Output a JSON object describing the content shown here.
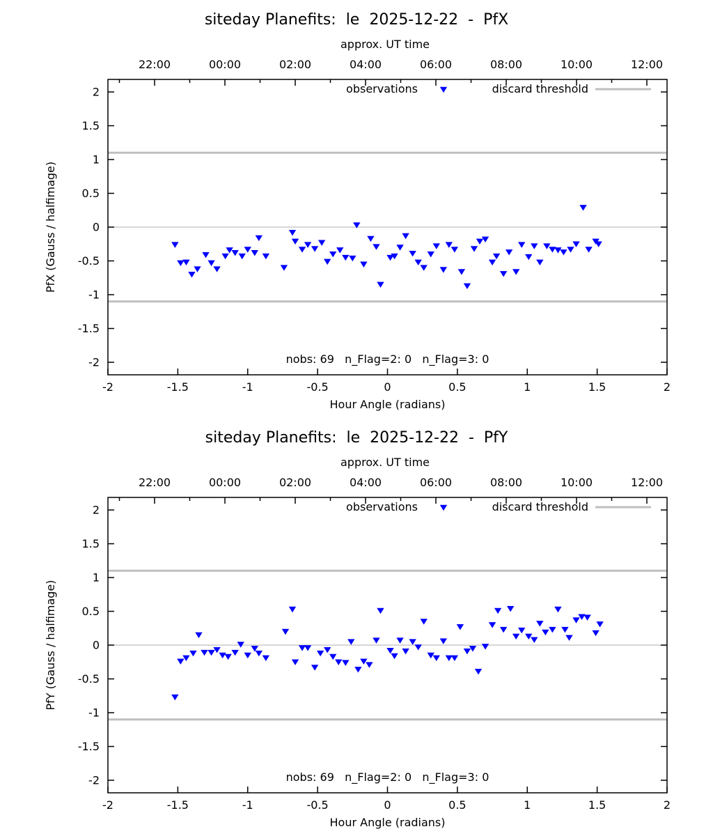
{
  "colors": {
    "background": "#ffffff",
    "marker": "#0000ff",
    "threshold": "#bfbfbf",
    "zero_line": "#c8c8c8",
    "axis": "#000000",
    "text": "#000000"
  },
  "chart_data": [
    {
      "type": "scatter",
      "title": "siteday Planefits:  le  2025-12-22  -  PfX",
      "x2_axis": {
        "label": "approx. UT time",
        "major": [
          {
            "label": "22:00",
            "t": 0
          },
          {
            "label": "00:00",
            "t": 2
          },
          {
            "label": "02:00",
            "t": 4
          },
          {
            "label": "04:00",
            "t": 6
          },
          {
            "label": "06:00",
            "t": 8
          },
          {
            "label": "08:00",
            "t": 10
          },
          {
            "label": "10:00",
            "t": 12
          },
          {
            "label": "12:00",
            "t": 14
          }
        ],
        "minor_t": [
          -1,
          1,
          3,
          5,
          7,
          9,
          11,
          13
        ]
      },
      "x_axis": {
        "label": "Hour Angle (radians)",
        "min": -2,
        "max": 2,
        "ticks": [
          -2,
          -1.5,
          -1,
          -0.5,
          0,
          0.5,
          1,
          1.5,
          2
        ],
        "tick_labels": [
          "-2",
          "-1.5",
          "-1",
          "-0.5",
          "0",
          "0.5",
          "1",
          "1.5",
          "2"
        ]
      },
      "y_axis": {
        "label": "PfX (Gauss / halfimage)",
        "min": -2,
        "max": 2,
        "ticks": [
          2,
          1.5,
          1,
          0.5,
          0,
          -0.5,
          -1,
          -1.5,
          -2
        ],
        "tick_labels": [
          "2",
          "1.5",
          "1",
          "0.5",
          "0",
          "-0.5",
          "-1",
          "-1.5",
          "-2"
        ]
      },
      "legend": [
        {
          "label": "observations",
          "marker": "triangle-down"
        },
        {
          "label": "discard threshold",
          "marker": "line"
        }
      ],
      "discard_threshold": [
        1.1,
        -1.1
      ],
      "zero_line": 0,
      "annotation": "nobs: 69   n_Flag=2: 0   n_Flag=3: 0",
      "series": [
        {
          "name": "observations",
          "points": [
            [
              -1.52,
              -0.26
            ],
            [
              -1.48,
              -0.53
            ],
            [
              -1.44,
              -0.52
            ],
            [
              -1.4,
              -0.7
            ],
            [
              -1.36,
              -0.62
            ],
            [
              -1.3,
              -0.41
            ],
            [
              -1.26,
              -0.53
            ],
            [
              -1.22,
              -0.62
            ],
            [
              -1.16,
              -0.43
            ],
            [
              -1.13,
              -0.34
            ],
            [
              -1.09,
              -0.38
            ],
            [
              -1.04,
              -0.43
            ],
            [
              -1.0,
              -0.33
            ],
            [
              -0.95,
              -0.38
            ],
            [
              -0.92,
              -0.16
            ],
            [
              -0.87,
              -0.43
            ],
            [
              -0.74,
              -0.6
            ],
            [
              -0.68,
              -0.08
            ],
            [
              -0.66,
              -0.21
            ],
            [
              -0.61,
              -0.33
            ],
            [
              -0.57,
              -0.26
            ],
            [
              -0.52,
              -0.32
            ],
            [
              -0.47,
              -0.23
            ],
            [
              -0.43,
              -0.51
            ],
            [
              -0.39,
              -0.4
            ],
            [
              -0.34,
              -0.34
            ],
            [
              -0.3,
              -0.45
            ],
            [
              -0.25,
              -0.46
            ],
            [
              -0.22,
              0.03
            ],
            [
              -0.17,
              -0.55
            ],
            [
              -0.12,
              -0.17
            ],
            [
              -0.08,
              -0.29
            ],
            [
              -0.05,
              -0.85
            ],
            [
              0.02,
              -0.45
            ],
            [
              0.05,
              -0.43
            ],
            [
              0.09,
              -0.3
            ],
            [
              0.13,
              -0.13
            ],
            [
              0.18,
              -0.39
            ],
            [
              0.22,
              -0.52
            ],
            [
              0.26,
              -0.6
            ],
            [
              0.31,
              -0.4
            ],
            [
              0.35,
              -0.28
            ],
            [
              0.4,
              -0.63
            ],
            [
              0.44,
              -0.26
            ],
            [
              0.48,
              -0.33
            ],
            [
              0.53,
              -0.66
            ],
            [
              0.57,
              -0.87
            ],
            [
              0.62,
              -0.32
            ],
            [
              0.66,
              -0.21
            ],
            [
              0.7,
              -0.18
            ],
            [
              0.75,
              -0.52
            ],
            [
              0.78,
              -0.43
            ],
            [
              0.83,
              -0.69
            ],
            [
              0.87,
              -0.37
            ],
            [
              0.92,
              -0.66
            ],
            [
              0.96,
              -0.26
            ],
            [
              1.01,
              -0.44
            ],
            [
              1.05,
              -0.28
            ],
            [
              1.09,
              -0.52
            ],
            [
              1.14,
              -0.28
            ],
            [
              1.18,
              -0.33
            ],
            [
              1.22,
              -0.34
            ],
            [
              1.26,
              -0.37
            ],
            [
              1.31,
              -0.33
            ],
            [
              1.35,
              -0.25
            ],
            [
              1.4,
              0.29
            ],
            [
              1.44,
              -0.33
            ],
            [
              1.49,
              -0.21
            ],
            [
              1.51,
              -0.25
            ]
          ]
        }
      ]
    },
    {
      "type": "scatter",
      "title": "siteday Planefits:  le  2025-12-22  -  PfY",
      "x2_axis": {
        "label": "approx. UT time",
        "major": [
          {
            "label": "22:00",
            "t": 0
          },
          {
            "label": "00:00",
            "t": 2
          },
          {
            "label": "02:00",
            "t": 4
          },
          {
            "label": "04:00",
            "t": 6
          },
          {
            "label": "06:00",
            "t": 8
          },
          {
            "label": "08:00",
            "t": 10
          },
          {
            "label": "10:00",
            "t": 12
          },
          {
            "label": "12:00",
            "t": 14
          }
        ],
        "minor_t": [
          -1,
          1,
          3,
          5,
          7,
          9,
          11,
          13
        ]
      },
      "x_axis": {
        "label": "Hour Angle (radians)",
        "min": -2,
        "max": 2,
        "ticks": [
          -2,
          -1.5,
          -1,
          -0.5,
          0,
          0.5,
          1,
          1.5,
          2
        ],
        "tick_labels": [
          "-2",
          "-1.5",
          "-1",
          "-0.5",
          "0",
          "0.5",
          "1",
          "1.5",
          "2"
        ]
      },
      "y_axis": {
        "label": "PfY (Gauss / halfimage)",
        "min": -2,
        "max": 2,
        "ticks": [
          2,
          1.5,
          1,
          0.5,
          0,
          -0.5,
          -1,
          -1.5,
          -2
        ],
        "tick_labels": [
          "2",
          "1.5",
          "1",
          "0.5",
          "0",
          "-0.5",
          "-1",
          "-1.5",
          "-2"
        ]
      },
      "legend": [
        {
          "label": "observations",
          "marker": "triangle-down"
        },
        {
          "label": "discard threshold",
          "marker": "line"
        }
      ],
      "discard_threshold": [
        1.1,
        -1.1
      ],
      "zero_line": 0,
      "annotation": "nobs: 69   n_Flag=2: 0   n_Flag=3: 0",
      "series": [
        {
          "name": "observations",
          "points": [
            [
              -1.52,
              -0.77
            ],
            [
              -1.48,
              -0.24
            ],
            [
              -1.44,
              -0.19
            ],
            [
              -1.39,
              -0.12
            ],
            [
              -1.35,
              0.15
            ],
            [
              -1.31,
              -0.11
            ],
            [
              -1.26,
              -0.11
            ],
            [
              -1.22,
              -0.07
            ],
            [
              -1.18,
              -0.15
            ],
            [
              -1.14,
              -0.17
            ],
            [
              -1.09,
              -0.11
            ],
            [
              -1.05,
              0.01
            ],
            [
              -1.0,
              -0.15
            ],
            [
              -0.95,
              -0.05
            ],
            [
              -0.92,
              -0.12
            ],
            [
              -0.87,
              -0.19
            ],
            [
              -0.73,
              0.2
            ],
            [
              -0.68,
              0.53
            ],
            [
              -0.66,
              -0.25
            ],
            [
              -0.61,
              -0.04
            ],
            [
              -0.57,
              -0.04
            ],
            [
              -0.52,
              -0.33
            ],
            [
              -0.48,
              -0.12
            ],
            [
              -0.43,
              -0.07
            ],
            [
              -0.39,
              -0.17
            ],
            [
              -0.35,
              -0.25
            ],
            [
              -0.3,
              -0.26
            ],
            [
              -0.26,
              0.05
            ],
            [
              -0.21,
              -0.36
            ],
            [
              -0.17,
              -0.24
            ],
            [
              -0.13,
              -0.29
            ],
            [
              -0.08,
              0.07
            ],
            [
              -0.05,
              0.51
            ],
            [
              0.02,
              -0.08
            ],
            [
              0.05,
              -0.16
            ],
            [
              0.09,
              0.07
            ],
            [
              0.13,
              -0.09
            ],
            [
              0.18,
              0.05
            ],
            [
              0.22,
              -0.03
            ],
            [
              0.26,
              0.35
            ],
            [
              0.31,
              -0.15
            ],
            [
              0.35,
              -0.19
            ],
            [
              0.4,
              0.06
            ],
            [
              0.44,
              -0.19
            ],
            [
              0.48,
              -0.19
            ],
            [
              0.52,
              0.27
            ],
            [
              0.57,
              -0.09
            ],
            [
              0.61,
              -0.05
            ],
            [
              0.65,
              -0.39
            ],
            [
              0.7,
              -0.02
            ],
            [
              0.75,
              0.3
            ],
            [
              0.79,
              0.51
            ],
            [
              0.83,
              0.23
            ],
            [
              0.88,
              0.54
            ],
            [
              0.92,
              0.13
            ],
            [
              0.96,
              0.22
            ],
            [
              1.01,
              0.13
            ],
            [
              1.05,
              0.08
            ],
            [
              1.09,
              0.32
            ],
            [
              1.13,
              0.19
            ],
            [
              1.18,
              0.23
            ],
            [
              1.22,
              0.53
            ],
            [
              1.27,
              0.23
            ],
            [
              1.3,
              0.11
            ],
            [
              1.35,
              0.37
            ],
            [
              1.39,
              0.42
            ],
            [
              1.43,
              0.41
            ],
            [
              1.49,
              0.18
            ],
            [
              1.52,
              0.31
            ]
          ]
        }
      ]
    }
  ]
}
